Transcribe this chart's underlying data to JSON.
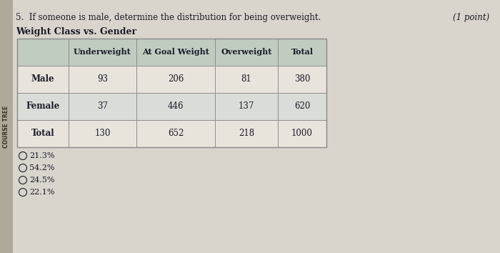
{
  "question": "5.  If someone is male, determine the distribution for being overweight.",
  "points": "(1 point)",
  "table_title": "Weight Class vs. Gender",
  "headers": [
    "",
    "Underweight",
    "At Goal Weight",
    "Overweight",
    "Total"
  ],
  "rows": [
    [
      "Male",
      "93",
      "206",
      "81",
      "380"
    ],
    [
      "Female",
      "37",
      "446",
      "137",
      "620"
    ],
    [
      "Total",
      "130",
      "652",
      "218",
      "1000"
    ]
  ],
  "options": [
    "21.3%",
    "54.2%",
    "24.5%",
    "22.1%"
  ],
  "bg_color": "#d9d5cc",
  "sidebar_color": "#b0a898",
  "table_header_bg": "#c0ccc0",
  "table_row_bg1": "#e8e4dc",
  "table_row_bg2": "#d8ddd8",
  "border_color": "#888888",
  "text_color": "#1a1a2a",
  "sidebar_text": "COURSE TREE"
}
